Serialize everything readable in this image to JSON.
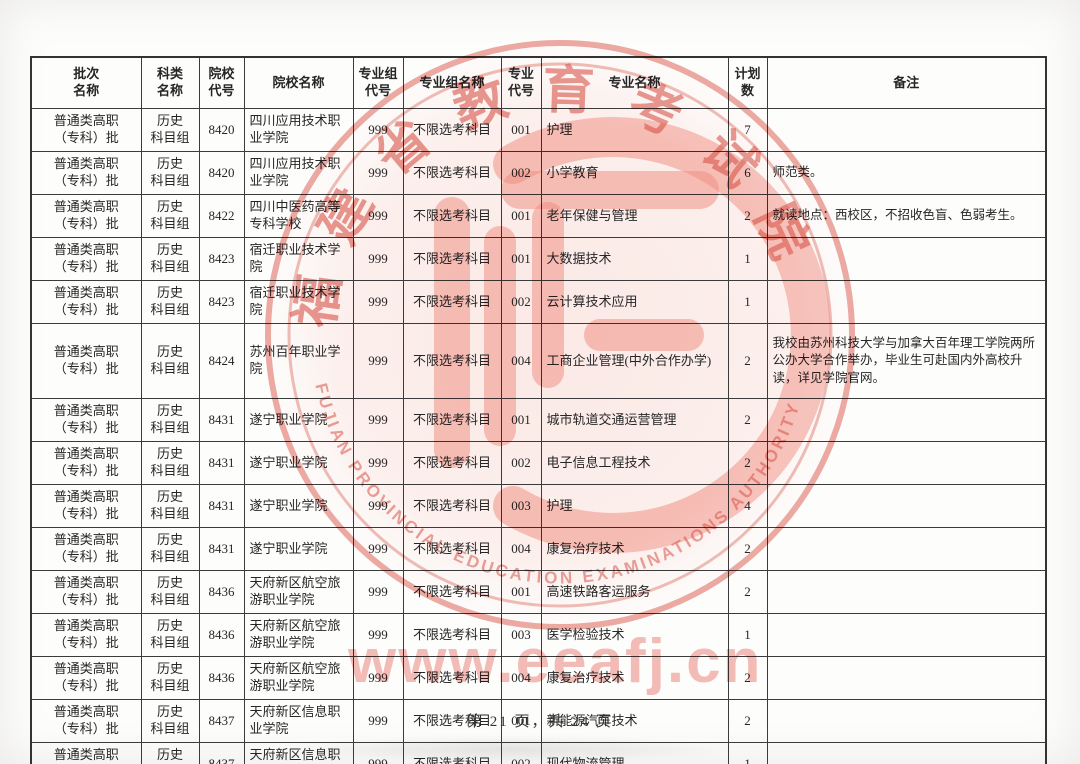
{
  "page": {
    "footer_text": "第 21 页，共 24 页",
    "watermark": {
      "url_text": "www.eeafj.cn",
      "seal_chars": [
        "福",
        "建",
        "省",
        "教",
        "育",
        "考",
        "试",
        "院"
      ],
      "seal_ring_text": "FUJIAN PROVINCIAL EDUCATION EXAMINATIONS AUTHORITY",
      "seal_color": "#db584c",
      "url_color": "#e97064"
    }
  },
  "table": {
    "headers": [
      "批次\n名称",
      "科类\n名称",
      "院校\n代号",
      "院校名称",
      "专业组\n代号",
      "专业组名称",
      "专业\n代号",
      "专业名称",
      "计划\n数",
      "备注"
    ],
    "rows": [
      {
        "batch": "普通类高职\n（专科）批",
        "subject": "历史\n科目组",
        "school_code": "8420",
        "school_name": "四川应用技术职业学院",
        "group_code": "999",
        "group_name": "不限选考科目",
        "major_code": "001",
        "major_name": "护理",
        "plan": "7",
        "remark": ""
      },
      {
        "batch": "普通类高职\n（专科）批",
        "subject": "历史\n科目组",
        "school_code": "8420",
        "school_name": "四川应用技术职业学院",
        "group_code": "999",
        "group_name": "不限选考科目",
        "major_code": "002",
        "major_name": "小学教育",
        "plan": "6",
        "remark": "师范类。"
      },
      {
        "batch": "普通类高职\n（专科）批",
        "subject": "历史\n科目组",
        "school_code": "8422",
        "school_name": "四川中医药高等专科学校",
        "group_code": "999",
        "group_name": "不限选考科目",
        "major_code": "001",
        "major_name": "老年保健与管理",
        "plan": "2",
        "remark": "就读地点：西校区，不招收色盲、色弱考生。"
      },
      {
        "batch": "普通类高职\n（专科）批",
        "subject": "历史\n科目组",
        "school_code": "8423",
        "school_name": "宿迁职业技术学院",
        "group_code": "999",
        "group_name": "不限选考科目",
        "major_code": "001",
        "major_name": "大数据技术",
        "plan": "1",
        "remark": ""
      },
      {
        "batch": "普通类高职\n（专科）批",
        "subject": "历史\n科目组",
        "school_code": "8423",
        "school_name": "宿迁职业技术学院",
        "group_code": "999",
        "group_name": "不限选考科目",
        "major_code": "002",
        "major_name": "云计算技术应用",
        "plan": "1",
        "remark": ""
      },
      {
        "batch": "普通类高职\n（专科）批",
        "subject": "历史\n科目组",
        "school_code": "8424",
        "school_name": "苏州百年职业学院",
        "group_code": "999",
        "group_name": "不限选考科目",
        "major_code": "004",
        "major_name": "工商企业管理(中外合作办学)",
        "plan": "2",
        "remark": "我校由苏州科技大学与加拿大百年理工学院两所公办大学合作举办，毕业生可赴国内外高校升读，详见学院官网。"
      },
      {
        "batch": "普通类高职\n（专科）批",
        "subject": "历史\n科目组",
        "school_code": "8431",
        "school_name": "遂宁职业学院",
        "group_code": "999",
        "group_name": "不限选考科目",
        "major_code": "001",
        "major_name": "城市轨道交通运营管理",
        "plan": "2",
        "remark": ""
      },
      {
        "batch": "普通类高职\n（专科）批",
        "subject": "历史\n科目组",
        "school_code": "8431",
        "school_name": "遂宁职业学院",
        "group_code": "999",
        "group_name": "不限选考科目",
        "major_code": "002",
        "major_name": "电子信息工程技术",
        "plan": "2",
        "remark": ""
      },
      {
        "batch": "普通类高职\n（专科）批",
        "subject": "历史\n科目组",
        "school_code": "8431",
        "school_name": "遂宁职业学院",
        "group_code": "999",
        "group_name": "不限选考科目",
        "major_code": "003",
        "major_name": "护理",
        "plan": "4",
        "remark": ""
      },
      {
        "batch": "普通类高职\n（专科）批",
        "subject": "历史\n科目组",
        "school_code": "8431",
        "school_name": "遂宁职业学院",
        "group_code": "999",
        "group_name": "不限选考科目",
        "major_code": "004",
        "major_name": "康复治疗技术",
        "plan": "2",
        "remark": ""
      },
      {
        "batch": "普通类高职\n（专科）批",
        "subject": "历史\n科目组",
        "school_code": "8436",
        "school_name": "天府新区航空旅游职业学院",
        "group_code": "999",
        "group_name": "不限选考科目",
        "major_code": "001",
        "major_name": "高速铁路客运服务",
        "plan": "2",
        "remark": ""
      },
      {
        "batch": "普通类高职\n（专科）批",
        "subject": "历史\n科目组",
        "school_code": "8436",
        "school_name": "天府新区航空旅游职业学院",
        "group_code": "999",
        "group_name": "不限选考科目",
        "major_code": "003",
        "major_name": "医学检验技术",
        "plan": "1",
        "remark": ""
      },
      {
        "batch": "普通类高职\n（专科）批",
        "subject": "历史\n科目组",
        "school_code": "8436",
        "school_name": "天府新区航空旅游职业学院",
        "group_code": "999",
        "group_name": "不限选考科目",
        "major_code": "004",
        "major_name": "康复治疗技术",
        "plan": "2",
        "remark": ""
      },
      {
        "batch": "普通类高职\n（专科）批",
        "subject": "历史\n科目组",
        "school_code": "8437",
        "school_name": "天府新区信息职业学院",
        "group_code": "999",
        "group_name": "不限选考科目",
        "major_code": "001",
        "major_name": "新能源汽车技术",
        "plan": "2",
        "remark": ""
      },
      {
        "batch": "普通类高职\n（专科）批",
        "subject": "历史\n科目组",
        "school_code": "8437",
        "school_name": "天府新区信息职业学院",
        "group_code": "999",
        "group_name": "不限选考科目",
        "major_code": "002",
        "major_name": "现代物流管理",
        "plan": "1",
        "remark": ""
      }
    ]
  }
}
